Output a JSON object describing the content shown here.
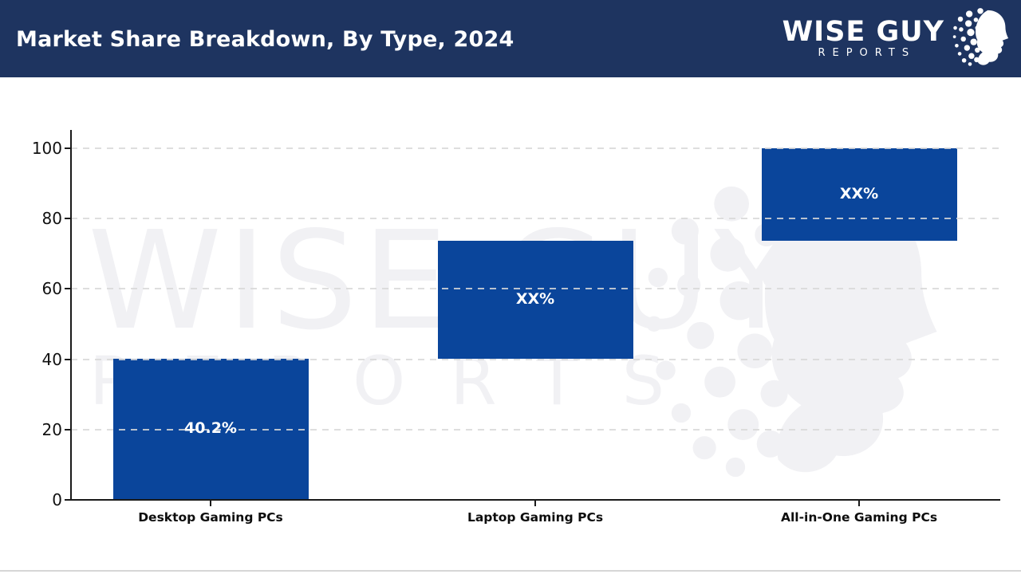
{
  "header": {
    "title": "Market Share Breakdown, By Type, 2024",
    "logo": {
      "name": "WISE GUY",
      "subtitle": "REPORTS"
    }
  },
  "watermark": {
    "line1": "WISE GUY",
    "line2": "REPORTS"
  },
  "chart_data": {
    "type": "bar",
    "variant": "waterfall",
    "title": "Market Share Breakdown, By Type, 2024",
    "categories": [
      "Desktop Gaming PCs",
      "Laptop Gaming PCs",
      "All-in-One Gaming PCs"
    ],
    "segments": [
      {
        "category": "Desktop Gaming PCs",
        "start": 0,
        "end": 40.2,
        "label": "40.2%"
      },
      {
        "category": "Laptop Gaming PCs",
        "start": 40.2,
        "end": 73.7,
        "label": "XX%"
      },
      {
        "category": "All-in-One Gaming PCs",
        "start": 73.7,
        "end": 100,
        "label": "XX%"
      }
    ],
    "xlabel": "",
    "ylabel": "",
    "ylim": [
      0,
      105
    ],
    "yticks": [
      0,
      20,
      40,
      60,
      80,
      100
    ],
    "grid": "horizontal-dashed",
    "legend": "none",
    "bar_color": "#0a459b",
    "bar_label_color": "#ffffff"
  },
  "colors": {
    "header_bg": "#1e3460",
    "bar": "#0a459b",
    "grid": "#d8d8d8",
    "axis": "#1a1a1a",
    "watermark": "#f1f1f4",
    "footer_line": "#d6d6d6"
  }
}
